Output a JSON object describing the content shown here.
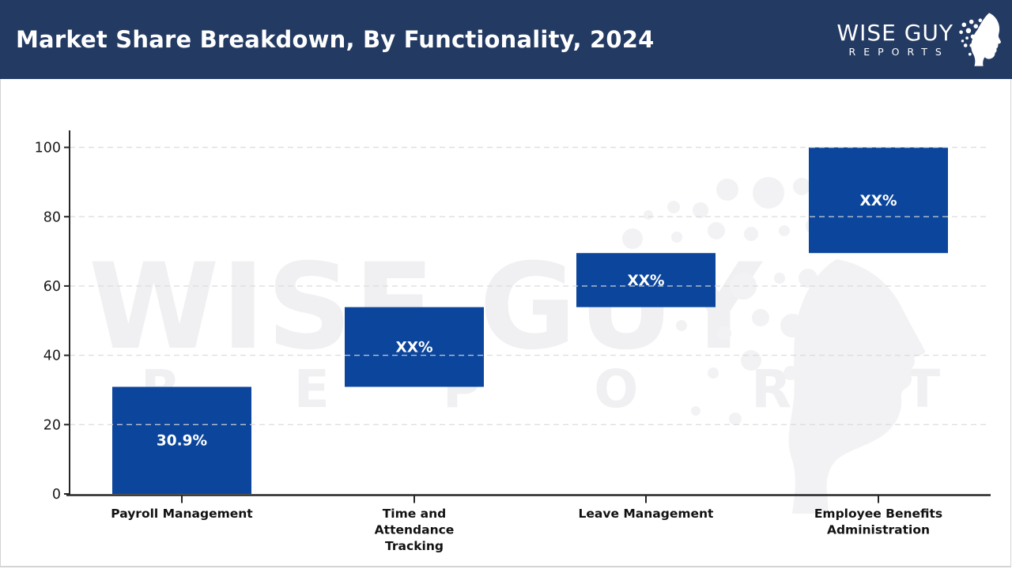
{
  "header": {
    "title": "Market Share Breakdown, By Functionality, 2024",
    "logo": {
      "brand": "WISE GUY",
      "sub": "REPORTS"
    }
  },
  "watermark": {
    "brand": "WISE GUY",
    "sub": "R E P O R T S"
  },
  "chart_data": {
    "type": "bar",
    "subtype": "waterfall",
    "title": "Market Share Breakdown, By Functionality, 2024",
    "categories": [
      "Payroll Management",
      "Time and Attendance Tracking",
      "Leave Management",
      "Employee Benefits Administration"
    ],
    "category_lines": [
      [
        "Payroll Management"
      ],
      [
        "Time and",
        "Attendance",
        "Tracking"
      ],
      [
        "Leave Management"
      ],
      [
        "Employee Benefits",
        "Administration"
      ]
    ],
    "segments": [
      {
        "category": "Payroll Management",
        "start": 0,
        "end": 30.9,
        "label": "30.9%"
      },
      {
        "category": "Time and Attendance Tracking",
        "start": 30.9,
        "end": 53.9,
        "label": "XX%"
      },
      {
        "category": "Leave Management",
        "start": 53.9,
        "end": 69.5,
        "label": "XX%"
      },
      {
        "category": "Employee Benefits Administration",
        "start": 69.5,
        "end": 100,
        "label": "XX%"
      }
    ],
    "xlabel": "",
    "ylabel": "",
    "ylim": [
      0,
      100
    ],
    "yticks": [
      0,
      20,
      40,
      60,
      80,
      100
    ],
    "grid": "horizontal-dashed",
    "legend": "none",
    "colors": {
      "bar": "#0b459c",
      "bar_label": "#ffffff",
      "axis": "#262626",
      "gridline": "#d9d9d9",
      "tick_label": "#1a1a1a"
    }
  },
  "colors": {
    "header_bg": "#233a63",
    "page_bg": "#ffffff",
    "logo_text": "#ffffff",
    "watermark_text": "#f0f0f3",
    "watermark_shape": "#f2f2f4",
    "frame_line": "#d4d4d4"
  }
}
